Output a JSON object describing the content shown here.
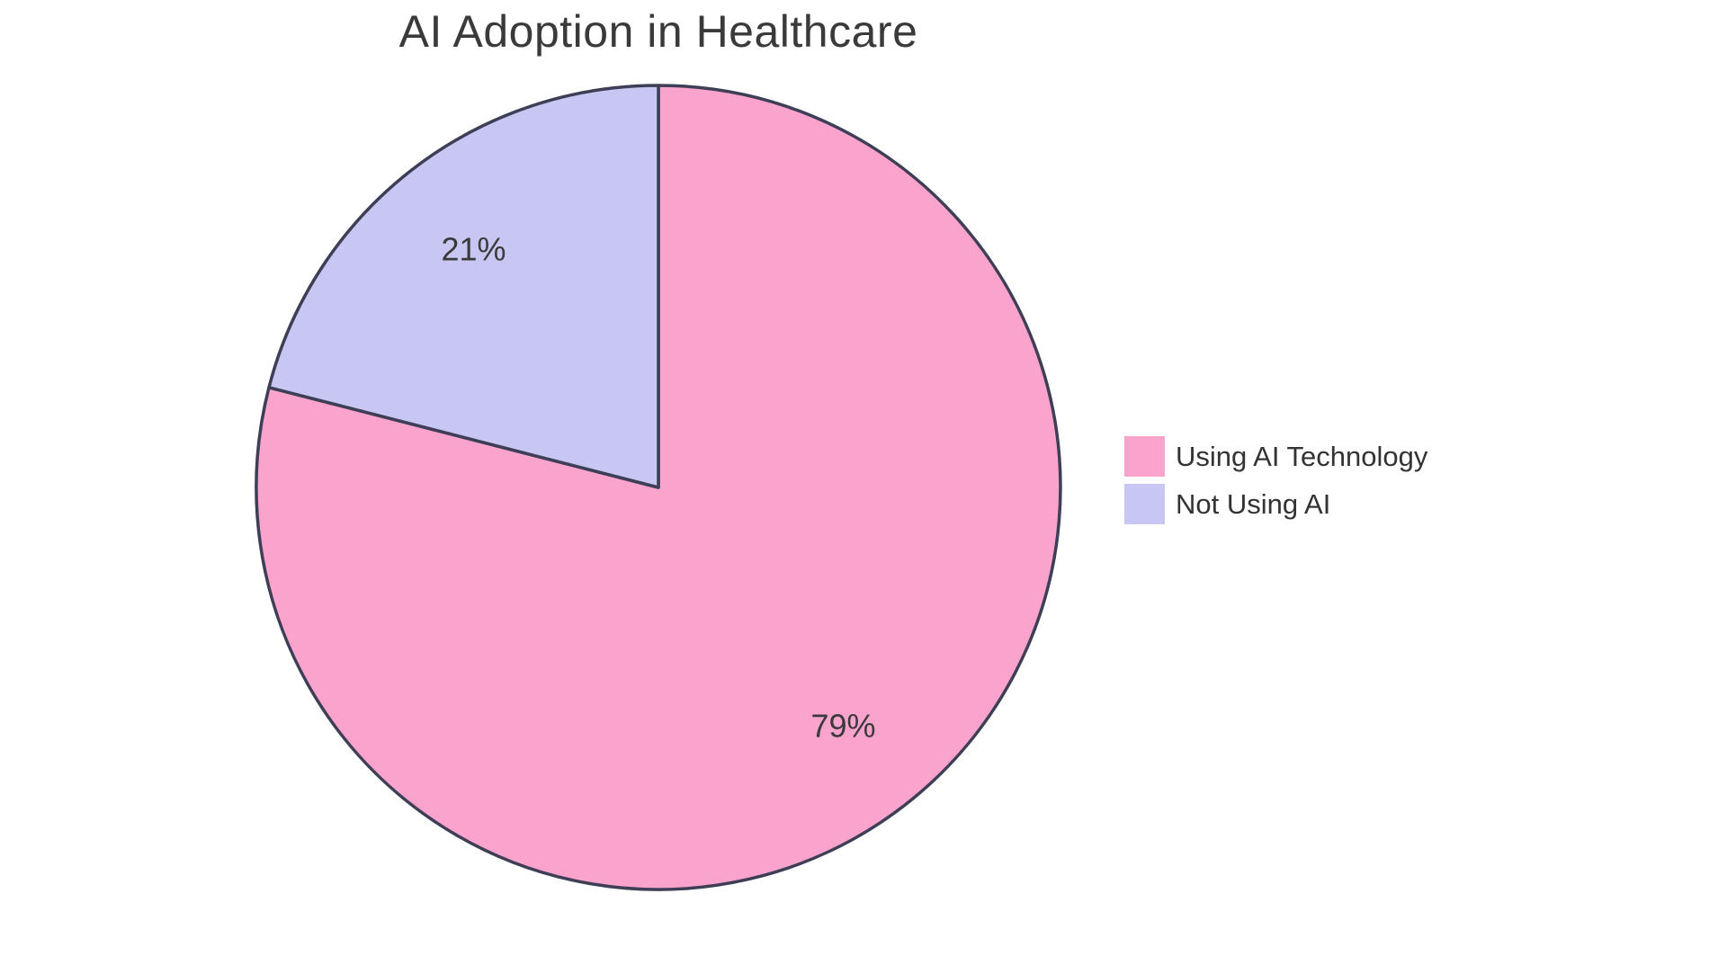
{
  "chart_data": {
    "type": "pie",
    "title": "AI Adoption in Healthcare",
    "labels": [
      "Using AI Technology",
      "Not Using AI"
    ],
    "values": [
      79,
      21
    ],
    "slice_labels": [
      "79%",
      "21%"
    ],
    "colors": [
      "#FAA3CD",
      "#C8C7F3"
    ],
    "stroke_color": "#3E3E56",
    "stroke_width": 3.5,
    "start_angle_deg": 0,
    "direction": "clockwise",
    "legend_position": "right",
    "text_color": "#3A3A3A",
    "background": "#FFFFFF"
  }
}
